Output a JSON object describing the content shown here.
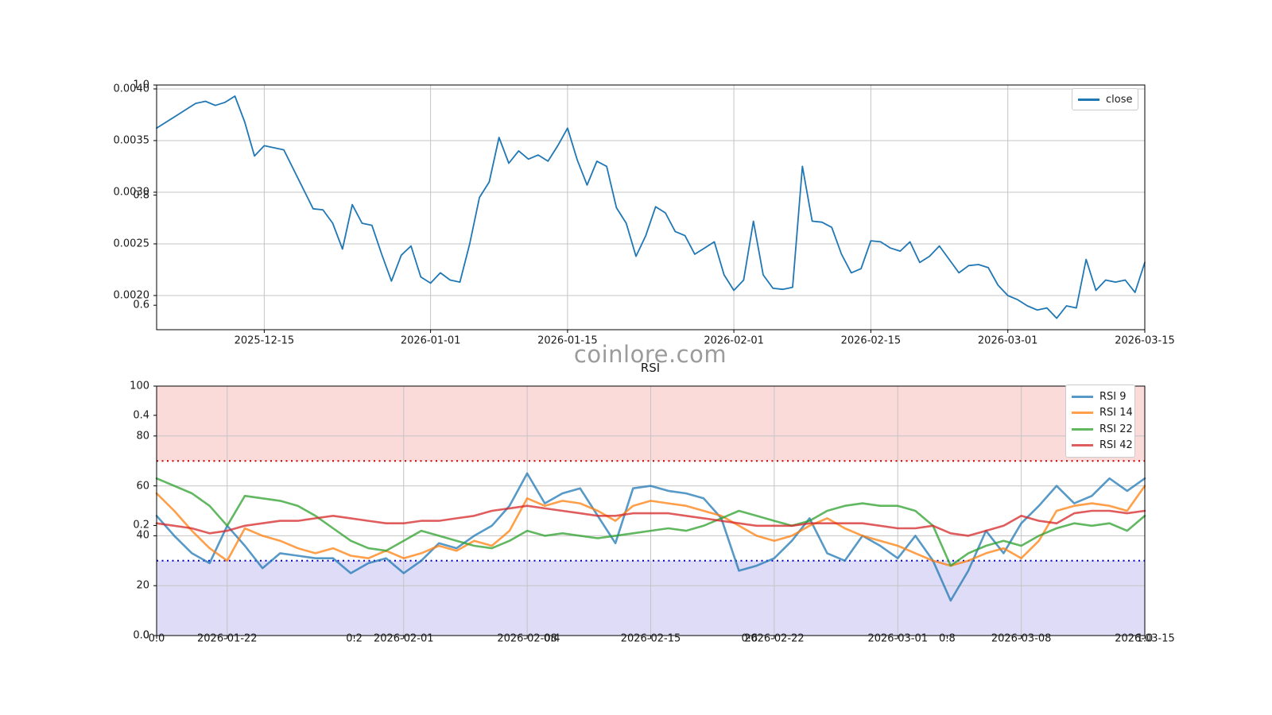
{
  "watermark": "coinlore.com",
  "colors": {
    "close_line": "#1f77b4",
    "rsi9": "#1f77b4",
    "rsi14": "#ff7f0e",
    "rsi22": "#2ca02c",
    "rsi42": "#d62728",
    "overbought_band": "#fbdada",
    "oversold_band": "#dedcf6",
    "overbought_line": "#cc0000",
    "oversold_line": "#0000cc",
    "grid": "#c4c4c4",
    "spine": "#000000"
  },
  "overlay_axis": {
    "xticks": [
      "0.0",
      "0.2",
      "0.4",
      "0.6",
      "0.8",
      "1.0"
    ],
    "yticks": [
      "0.0",
      "0.2",
      "0.4",
      "0.6",
      "0.8",
      "1.0"
    ]
  },
  "chart_data": [
    {
      "type": "line",
      "title": "",
      "legend_position": "upper right",
      "grid": true,
      "x_start": "2025-12-04",
      "x_end": "2026-03-15",
      "x_unit": "day",
      "ylim": [
        0.001669,
        0.004038
      ],
      "xticks": [
        {
          "label": "2025-12-15",
          "day": 11
        },
        {
          "label": "2026-01-01",
          "day": 28
        },
        {
          "label": "2026-01-15",
          "day": 42
        },
        {
          "label": "2026-02-01",
          "day": 59
        },
        {
          "label": "2026-02-15",
          "day": 73
        },
        {
          "label": "2026-03-01",
          "day": 87
        },
        {
          "label": "2026-03-15",
          "day": 101
        }
      ],
      "yticks": [
        {
          "label": "0.0020",
          "value": 0.002
        },
        {
          "label": "0.0025",
          "value": 0.0025
        },
        {
          "label": "0.0030",
          "value": 0.003
        },
        {
          "label": "0.0035",
          "value": 0.0035
        },
        {
          "label": "0.0040",
          "value": 0.004
        }
      ],
      "series": [
        {
          "name": "close",
          "color": "#1f77b4",
          "opacity": 1,
          "width": 1.8,
          "values": [
            0.00362,
            0.00368,
            0.00374,
            0.0038,
            0.00386,
            0.00388,
            0.00384,
            0.00387,
            0.00393,
            0.00368,
            0.00335,
            0.00345,
            0.00343,
            0.00341,
            0.00322,
            0.00303,
            0.00284,
            0.00283,
            0.0027,
            0.00245,
            0.00288,
            0.0027,
            0.00268,
            0.0024,
            0.00214,
            0.00239,
            0.00248,
            0.00218,
            0.00212,
            0.00222,
            0.00215,
            0.00213,
            0.0025,
            0.00295,
            0.0031,
            0.00353,
            0.00328,
            0.0034,
            0.00332,
            0.00336,
            0.0033,
            0.00345,
            0.00362,
            0.00331,
            0.00307,
            0.0033,
            0.00325,
            0.00285,
            0.0027,
            0.00238,
            0.00258,
            0.00286,
            0.0028,
            0.00262,
            0.00258,
            0.0024,
            0.00246,
            0.00252,
            0.0022,
            0.00205,
            0.00215,
            0.00272,
            0.0022,
            0.00207,
            0.00206,
            0.00208,
            0.00325,
            0.00272,
            0.00271,
            0.00266,
            0.0024,
            0.00222,
            0.00226,
            0.00253,
            0.00252,
            0.00246,
            0.00243,
            0.00252,
            0.00232,
            0.00238,
            0.00248,
            0.00235,
            0.00222,
            0.00229,
            0.0023,
            0.00227,
            0.0021,
            0.002,
            0.00196,
            0.0019,
            0.00186,
            0.00188,
            0.00178,
            0.0019,
            0.00188,
            0.00235,
            0.00205,
            0.00215,
            0.00213,
            0.00215,
            0.00203,
            0.00232
          ]
        }
      ]
    },
    {
      "type": "line",
      "title": "RSI",
      "legend_position": "upper right",
      "grid": true,
      "x_start": "2026-01-18",
      "x_end": "2026-03-15",
      "x_unit": "day",
      "ylim": [
        0,
        100
      ],
      "xticks": [
        {
          "label": "2026-01-22",
          "day": 4
        },
        {
          "label": "2026-02-01",
          "day": 14
        },
        {
          "label": "2026-02-08",
          "day": 21
        },
        {
          "label": "2026-02-15",
          "day": 28
        },
        {
          "label": "2026-02-22",
          "day": 35
        },
        {
          "label": "2026-03-01",
          "day": 42
        },
        {
          "label": "2026-03-08",
          "day": 49
        },
        {
          "label": "2026-03-15",
          "day": 56
        }
      ],
      "yticks": [
        {
          "label": "0",
          "value": 0
        },
        {
          "label": "20",
          "value": 20
        },
        {
          "label": "40",
          "value": 40
        },
        {
          "label": "60",
          "value": 60
        },
        {
          "label": "80",
          "value": 80
        },
        {
          "label": "100",
          "value": 100
        }
      ],
      "bands": [
        {
          "from": 70,
          "to": 100,
          "color": "#fbdada",
          "meaning": "overbought"
        },
        {
          "from": 0,
          "to": 30,
          "color": "#dedcf6",
          "meaning": "oversold"
        }
      ],
      "hlines": [
        {
          "value": 70,
          "color": "#cc0000",
          "style": "dotted"
        },
        {
          "value": 30,
          "color": "#0000cc",
          "style": "dotted"
        }
      ],
      "series": [
        {
          "name": "RSI 9",
          "color": "#1f77b4",
          "opacity": 0.75,
          "width": 2.6,
          "values": [
            48,
            40,
            33,
            29,
            44,
            36,
            27,
            33,
            32,
            31,
            31,
            25,
            29,
            31,
            25,
            30,
            37,
            35,
            40,
            44,
            52,
            65,
            53,
            57,
            59,
            48,
            37,
            59,
            60,
            58,
            57,
            55,
            47,
            26,
            28,
            31,
            38,
            47,
            33,
            30,
            40,
            36,
            31,
            40,
            30,
            14,
            26,
            42,
            33,
            45,
            52,
            60,
            53,
            56,
            63,
            58,
            63
          ]
        },
        {
          "name": "RSI 14",
          "color": "#ff7f0e",
          "opacity": 0.75,
          "width": 2.6,
          "values": [
            57,
            50,
            42,
            35,
            30,
            43,
            40,
            38,
            35,
            33,
            35,
            32,
            31,
            34,
            31,
            33,
            36,
            34,
            38,
            36,
            42,
            55,
            52,
            54,
            53,
            50,
            46,
            52,
            54,
            53,
            52,
            50,
            48,
            44,
            40,
            38,
            40,
            44,
            47,
            43,
            40,
            38,
            36,
            33,
            30,
            28,
            30,
            33,
            35,
            31,
            38,
            50,
            52,
            53,
            52,
            50,
            60
          ]
        },
        {
          "name": "RSI 22",
          "color": "#2ca02c",
          "opacity": 0.75,
          "width": 2.6,
          "values": [
            63,
            60,
            57,
            52,
            44,
            56,
            55,
            54,
            52,
            48,
            43,
            38,
            35,
            34,
            38,
            42,
            40,
            38,
            36,
            35,
            38,
            42,
            40,
            41,
            40,
            39,
            40,
            41,
            42,
            43,
            42,
            44,
            47,
            50,
            48,
            46,
            44,
            46,
            50,
            52,
            53,
            52,
            52,
            50,
            44,
            28,
            33,
            36,
            38,
            36,
            40,
            43,
            45,
            44,
            45,
            42,
            48
          ]
        },
        {
          "name": "RSI 42",
          "color": "#d62728",
          "opacity": 0.75,
          "width": 2.6,
          "values": [
            45,
            44,
            43,
            41,
            42,
            44,
            45,
            46,
            46,
            47,
            48,
            47,
            46,
            45,
            45,
            46,
            46,
            47,
            48,
            50,
            51,
            52,
            51,
            50,
            49,
            48,
            48,
            49,
            49,
            49,
            48,
            47,
            46,
            45,
            44,
            44,
            44,
            45,
            45,
            45,
            45,
            44,
            43,
            43,
            44,
            41,
            40,
            42,
            44,
            48,
            46,
            45,
            49,
            50,
            50,
            49,
            50
          ]
        }
      ]
    }
  ]
}
